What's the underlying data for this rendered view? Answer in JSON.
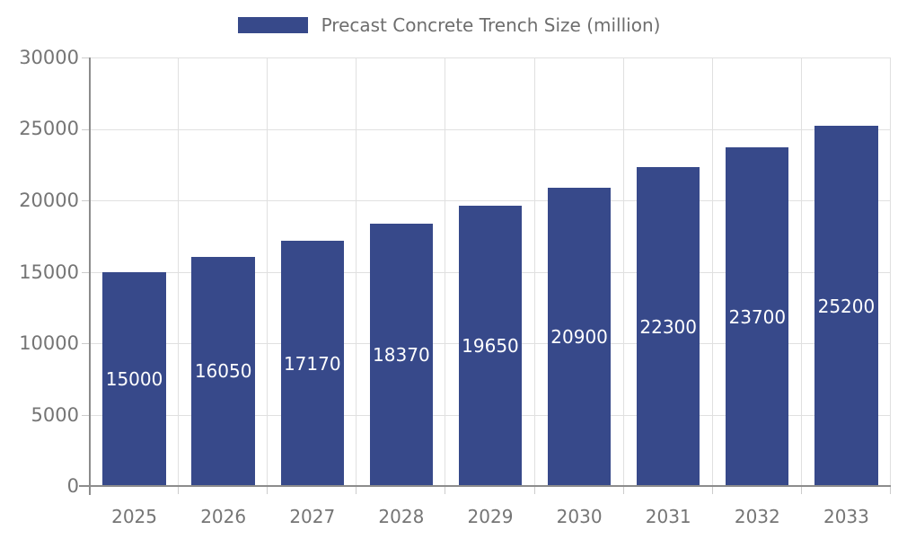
{
  "legend": {
    "label": "Precast Concrete Trench Size (million)"
  },
  "chart_data": {
    "type": "bar",
    "title": "Precast Concrete Trench Size (million)",
    "categories": [
      "2025",
      "2026",
      "2027",
      "2028",
      "2029",
      "2030",
      "2031",
      "2032",
      "2033"
    ],
    "values": [
      15000,
      16050,
      17170,
      18370,
      19650,
      20900,
      22300,
      23700,
      25200
    ],
    "series": [
      {
        "name": "Precast Concrete Trench Size (million)",
        "values": [
          15000,
          16050,
          17170,
          18370,
          19650,
          20900,
          22300,
          23700,
          25200
        ]
      }
    ],
    "xlabel": "",
    "ylabel": "",
    "ylim": [
      0,
      30000
    ],
    "yticks": [
      0,
      5000,
      10000,
      15000,
      20000,
      25000,
      30000
    ],
    "grid": true,
    "legend_position": "top-center",
    "bar_value_labels_visible": true,
    "colors": {
      "bar": "#37498A",
      "bar_label": "#FFFFFF",
      "axis_text": "#757575",
      "legend_text": "#6E6E6E",
      "grid": "#E0E0E0",
      "axis_line": "#8C8C8C",
      "tick": "#CCCCCC",
      "background": "#FFFFFF"
    }
  }
}
